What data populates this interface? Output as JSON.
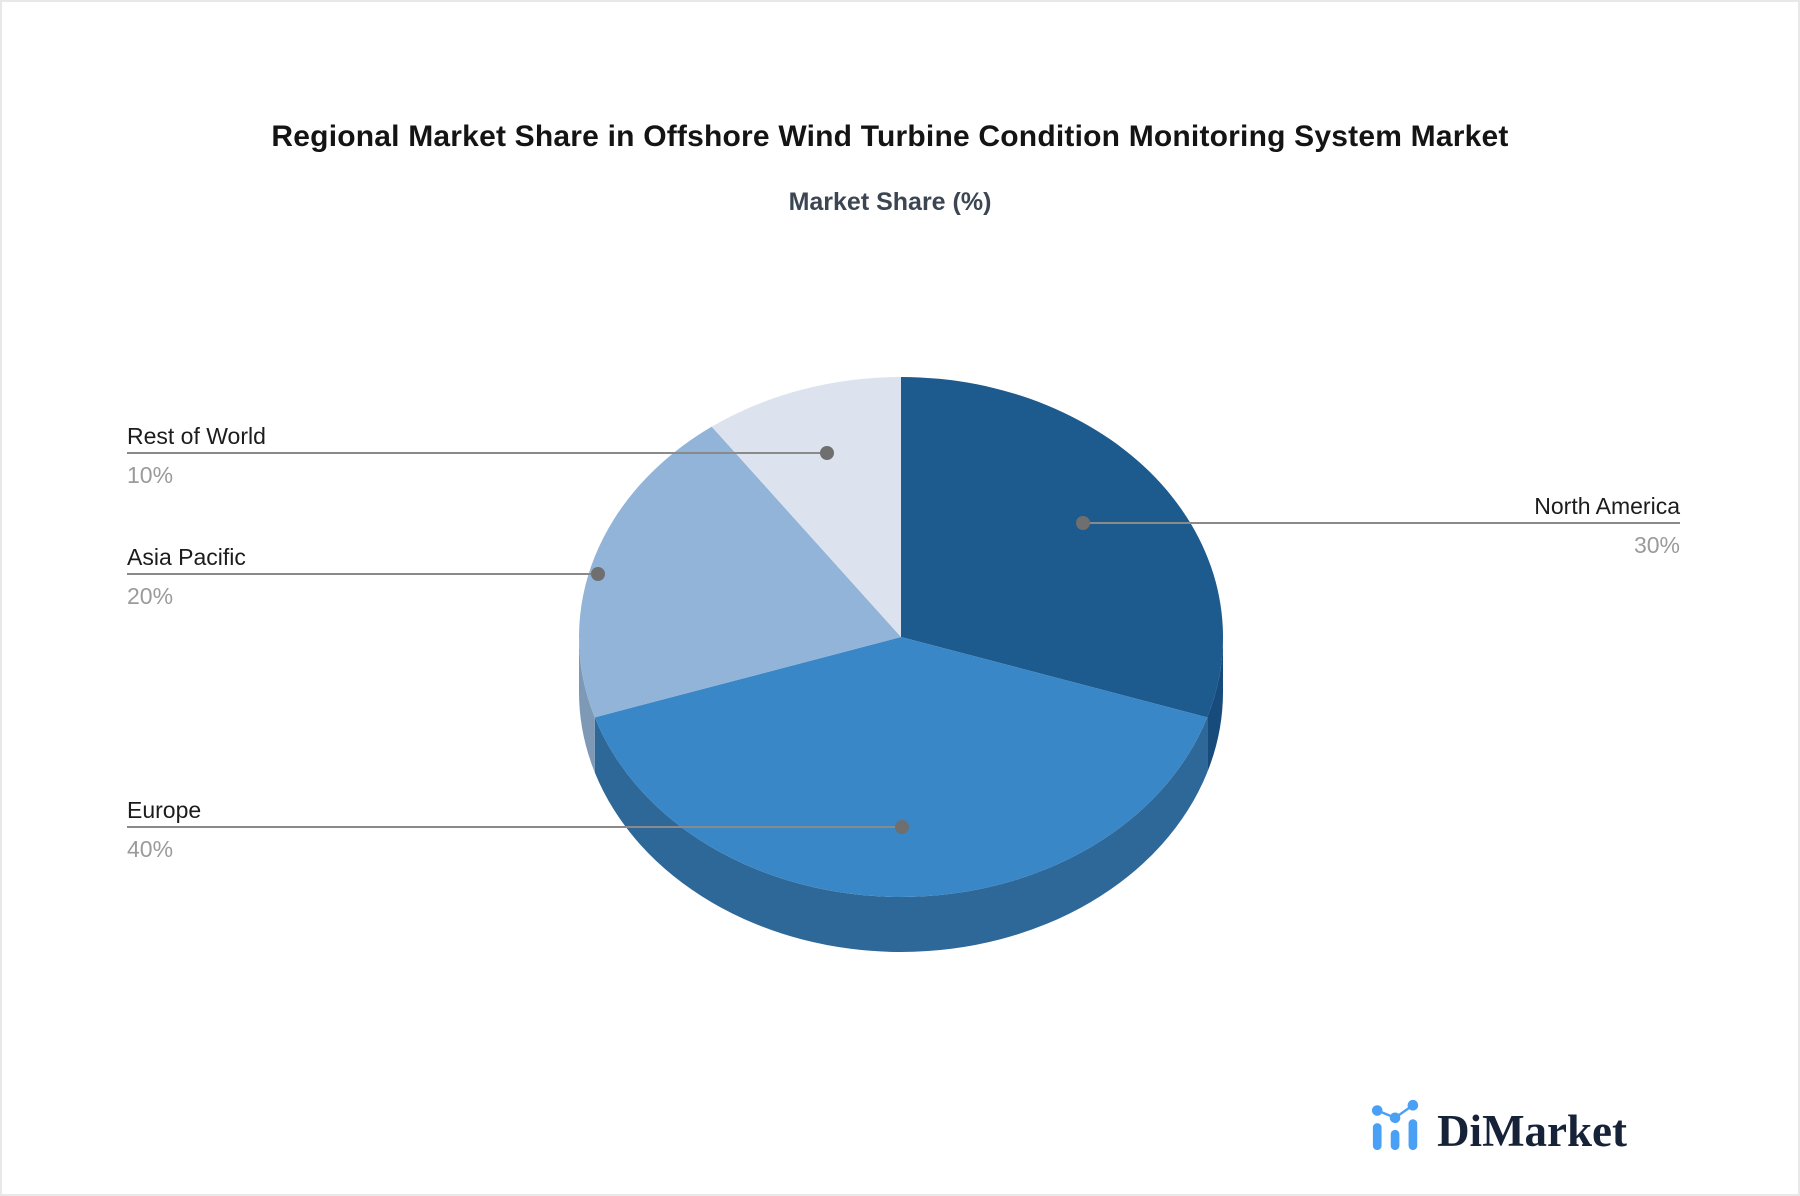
{
  "title": "Regional Market Share in Offshore Wind Turbine Condition Monitoring System Market",
  "subtitle": "Market Share (%)",
  "logo": {
    "text": "DiMarket",
    "icon": "bar-chart-trend-icon",
    "icon_color": "#4aa0f5",
    "text_color": "#152238"
  },
  "colors": {
    "leader_line": "#8a8a8a",
    "leader_dot": "#6f6f6f",
    "label_text": "#1c1c1c",
    "percent_text": "#9b9b9b",
    "title_text": "#141414",
    "subtitle_text": "#3c4653"
  },
  "chart_data": {
    "type": "pie",
    "style": "3d",
    "title": "Regional Market Share in Offshore Wind Turbine Condition Monitoring System Market",
    "subtitle": "Market Share (%)",
    "unit": "%",
    "start_angle_deg": 0,
    "direction": "clockwise",
    "legend_position": "none",
    "slices": [
      {
        "label": "North America",
        "value": 30,
        "display": "30%",
        "color": "#1d5a8e",
        "side_color": "#174b7b"
      },
      {
        "label": "Europe",
        "value": 40,
        "display": "40%",
        "color": "#3a87c8",
        "side_color": "#2d6899"
      },
      {
        "label": "Asia Pacific",
        "value": 20,
        "display": "20%",
        "color": "#92b4d8",
        "side_color": "#7d99b5"
      },
      {
        "label": "Rest of World",
        "value": 10,
        "display": "10%",
        "color": "#dde3ee",
        "side_color": "#b9c4d4"
      }
    ]
  }
}
